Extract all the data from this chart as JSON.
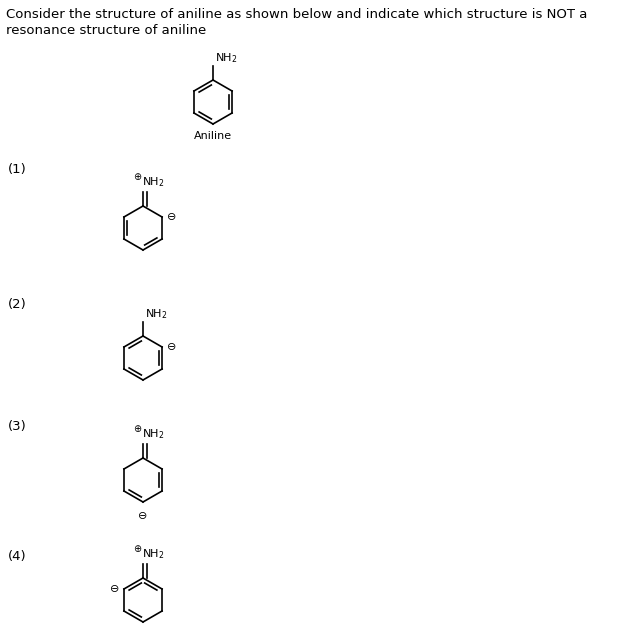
{
  "title_line1": "Consider the structure of aniline as shown below and indicate which structure is NOT a",
  "title_line2": "resonance structure of aniline",
  "bg_color": "#ffffff",
  "text_color": "#000000",
  "font_size_title": 9.5,
  "font_size_label": 9.5,
  "font_size_chem": 8,
  "fig_width": 6.36,
  "fig_height": 6.41,
  "dpi": 100
}
